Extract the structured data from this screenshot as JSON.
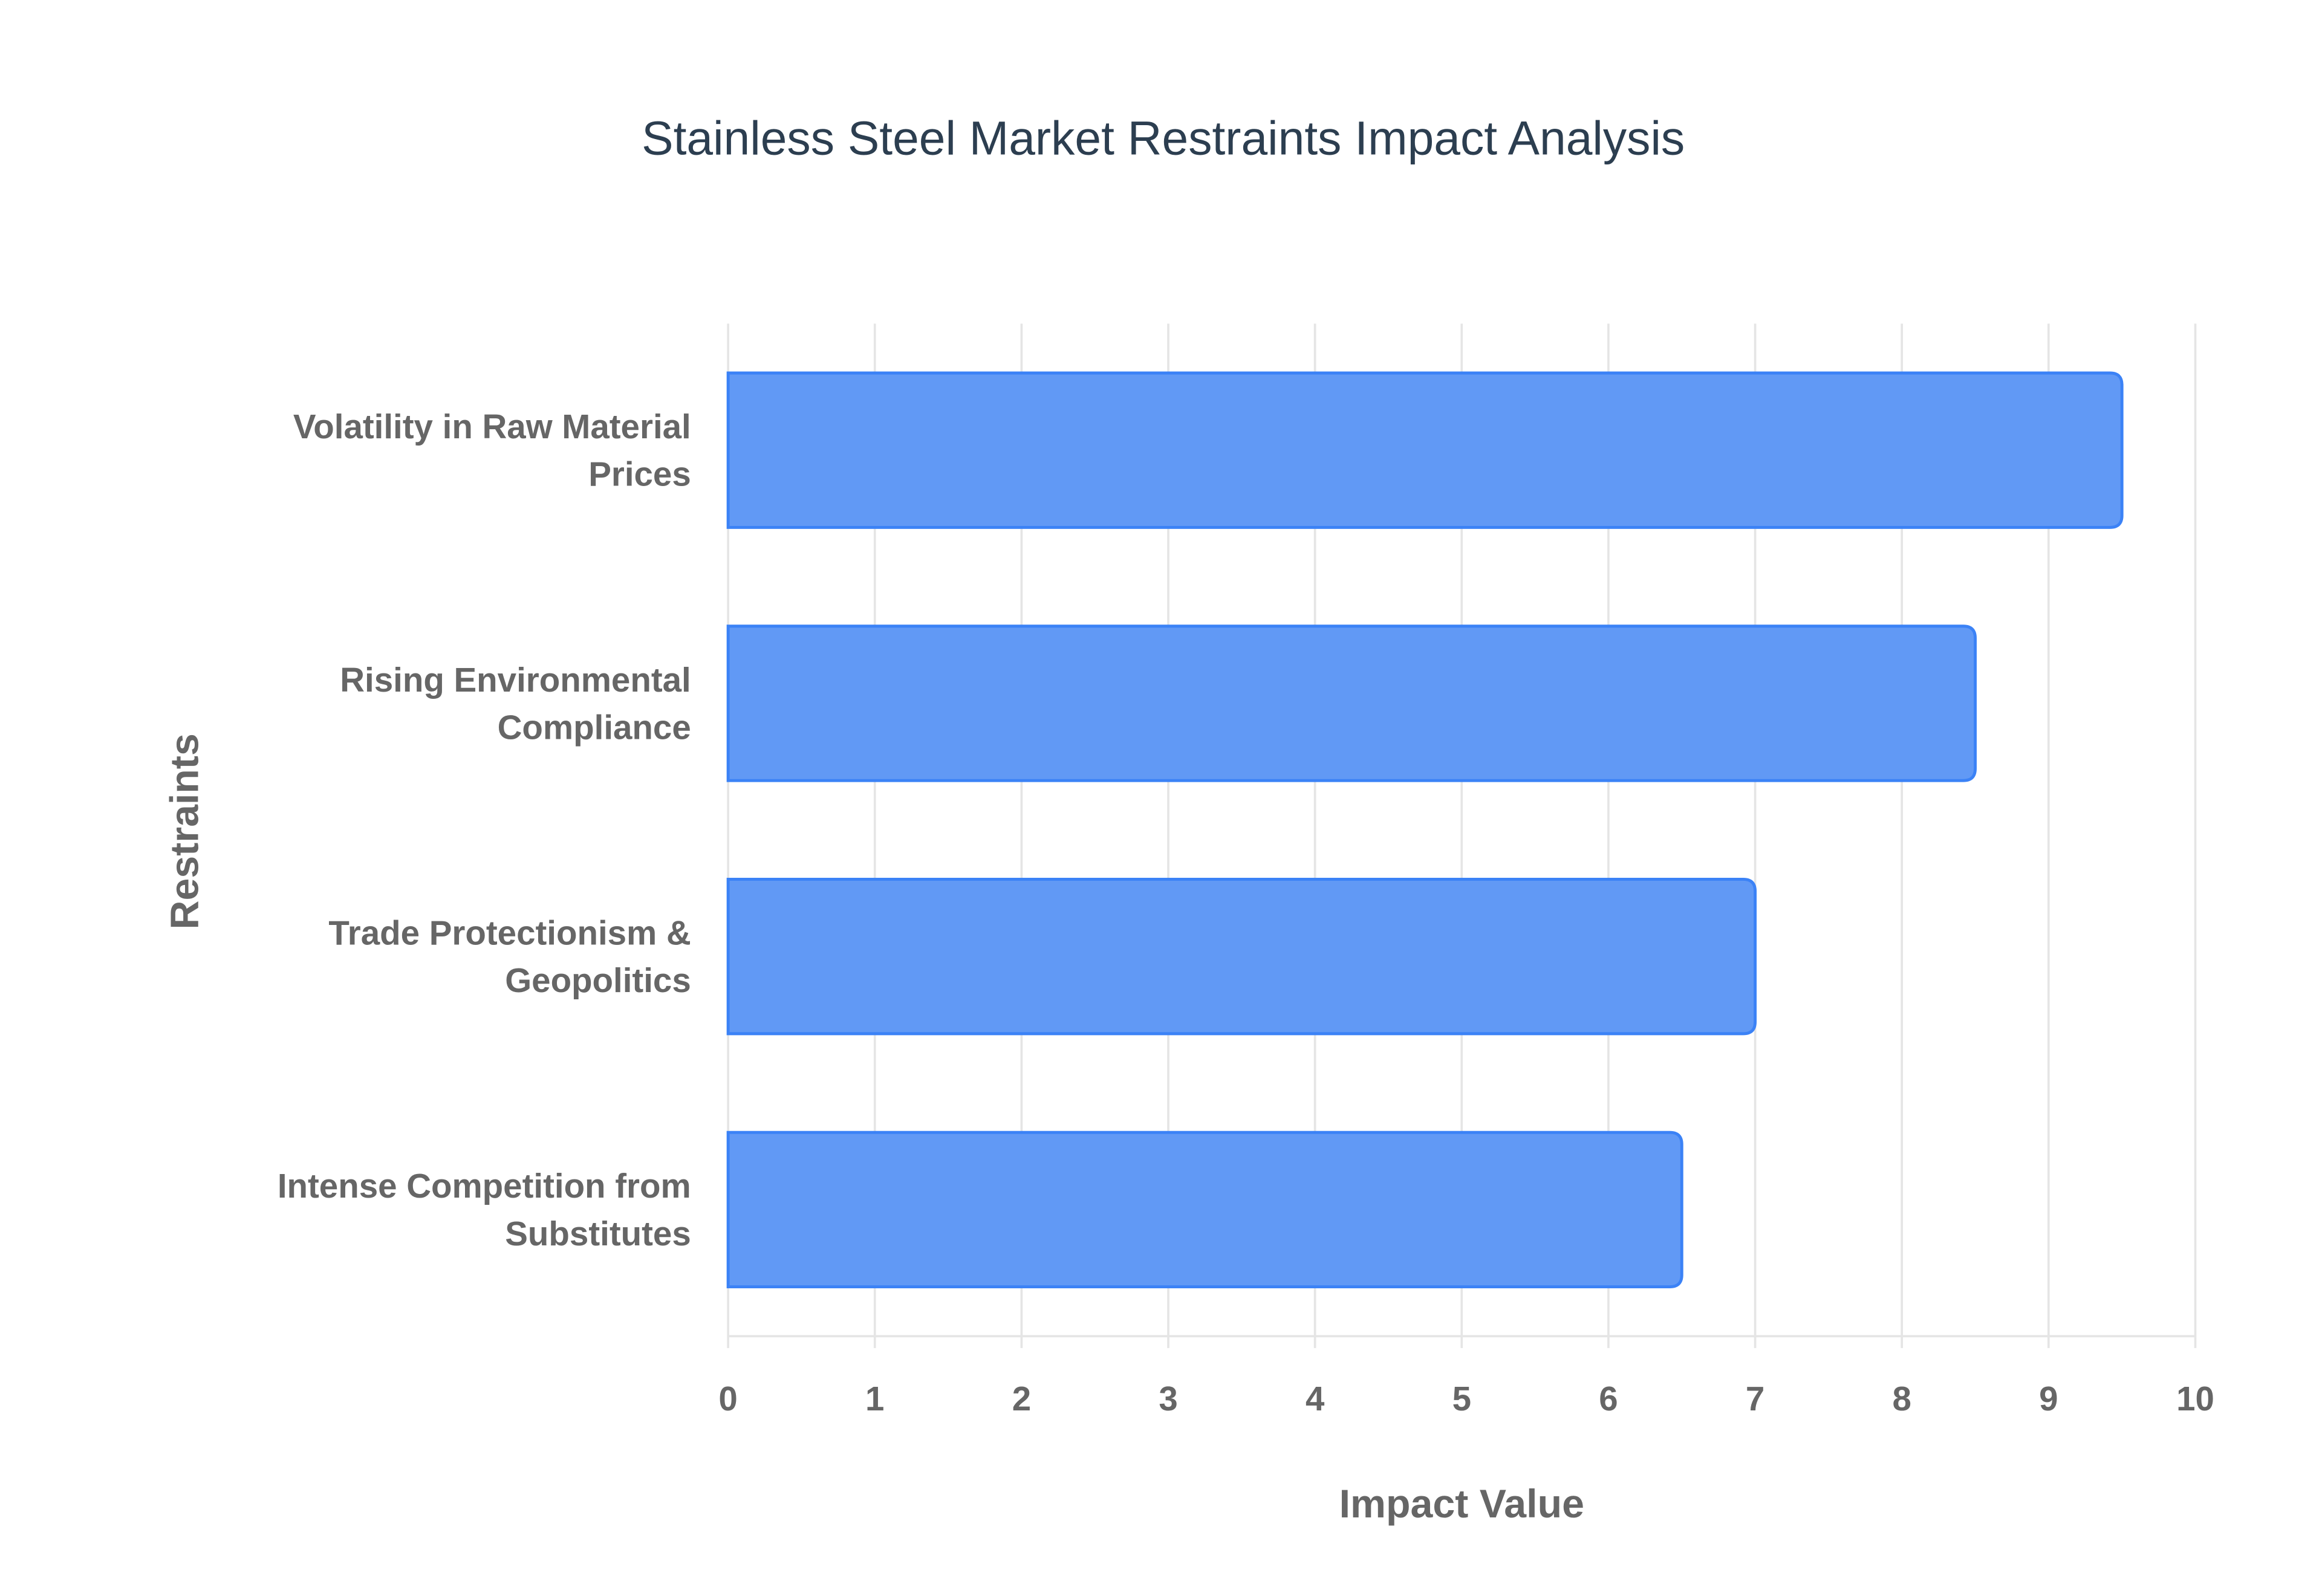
{
  "chart_data": {
    "type": "bar",
    "orientation": "horizontal",
    "title": "Stainless Steel Market Restraints Impact Analysis",
    "xlabel": "Impact Value",
    "ylabel": "Restraints",
    "categories": [
      [
        "Volatility in Raw Material",
        "Prices"
      ],
      [
        "Rising Environmental",
        "Compliance"
      ],
      [
        "Trade Protectionism &",
        "Geopolitics"
      ],
      [
        "Intense Competition from",
        "Substitutes"
      ]
    ],
    "values": [
      9.5,
      8.5,
      7.0,
      6.5
    ],
    "xlim": [
      0,
      10
    ],
    "xticks": [
      "0",
      "1",
      "2",
      "3",
      "4",
      "5",
      "6",
      "7",
      "8",
      "9",
      "10"
    ],
    "grid": true,
    "legend": "none",
    "colors": {
      "bar_fill": "#6199f5",
      "bar_border": "#3b82f6",
      "grid": "#e5e5e5",
      "title": "#2c3e50",
      "labels": "#666666"
    }
  }
}
